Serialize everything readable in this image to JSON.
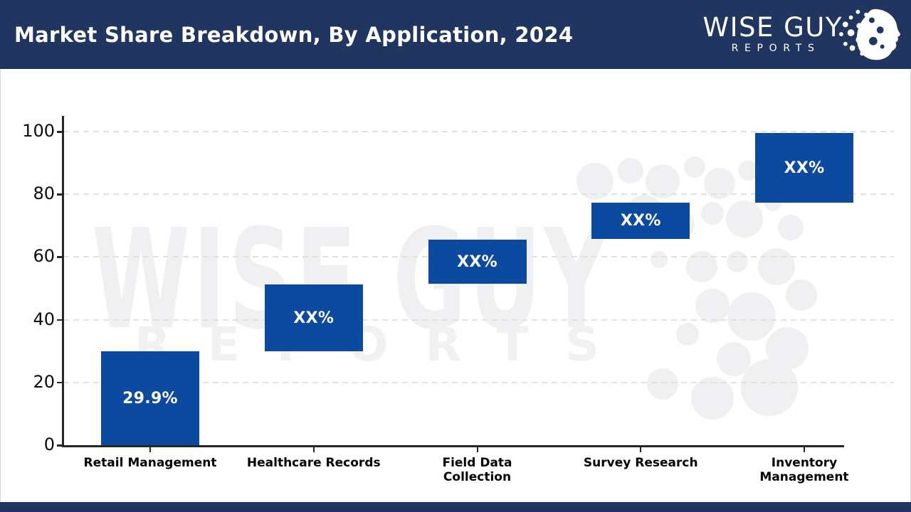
{
  "header": {
    "title": "Market Share Breakdown, By Application, 2024",
    "logo": {
      "line1": "WISE GUY",
      "line2": "REPORTS"
    }
  },
  "watermark": {
    "line1": "WISE GUY",
    "line2": "REPORTS"
  },
  "colors": {
    "header_navy": "#203560",
    "bar_blue": "#0b4a9e",
    "gridline": "#e1e1e1",
    "axis": "#262626",
    "bar_label_text": "#ffffff",
    "watermark_gray": "#f0f0f3"
  },
  "chart_data": {
    "type": "bar",
    "subtype": "waterfall-floating-bars",
    "title": "Market Share Breakdown, By Application, 2024",
    "xlabel": "",
    "ylabel": "",
    "ylim": [
      0,
      100
    ],
    "yticks": [
      0,
      20,
      40,
      60,
      80,
      100
    ],
    "grid": "horizontal-dashed",
    "legend": "none",
    "categories": [
      "Retail Management",
      "Healthcare Records",
      "Field Data Collection",
      "Survey Research",
      "Inventory Management"
    ],
    "category_label_lines": [
      [
        "Retail Management"
      ],
      [
        "Healthcare Records"
      ],
      [
        "Field Data",
        "Collection"
      ],
      [
        "Survey Research"
      ],
      [
        "Inventory",
        "Management"
      ]
    ],
    "bars": [
      {
        "category": "Retail Management",
        "start": 0,
        "end": 29.9,
        "label": "29.9%"
      },
      {
        "category": "Healthcare Records",
        "start": 29.9,
        "end": 51.2,
        "label": "XX%"
      },
      {
        "category": "Field Data Collection",
        "start": 51.5,
        "end": 65.5,
        "label": "XX%"
      },
      {
        "category": "Survey Research",
        "start": 65.8,
        "end": 77.3,
        "label": "XX%"
      },
      {
        "category": "Inventory Management",
        "start": 77.3,
        "end": 99.5,
        "label": "XX%"
      }
    ]
  }
}
